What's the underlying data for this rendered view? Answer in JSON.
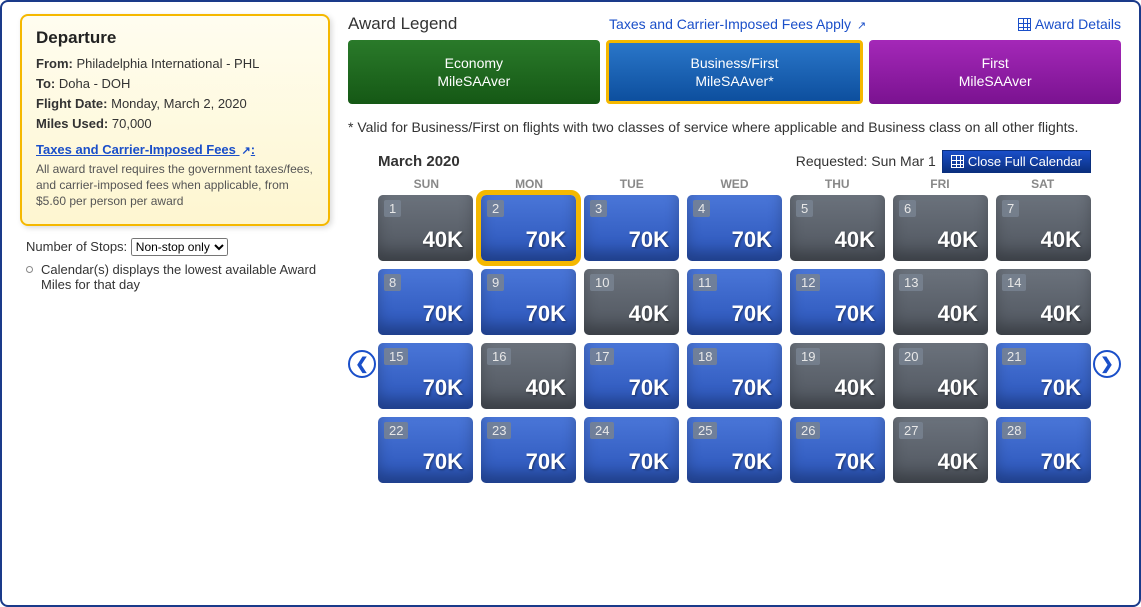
{
  "departure": {
    "title": "Departure",
    "from_label": "From:",
    "from_value": "Philadelphia International - PHL",
    "to_label": "To:",
    "to_value": "Doha - DOH",
    "date_label": "Flight Date:",
    "date_value": "Monday, March 2, 2020",
    "miles_label": "Miles Used:",
    "miles_value": "70,000",
    "fees_link": "Taxes and Carrier-Imposed Fees",
    "fees_note": "All award travel requires the government taxes/fees, and carrier-imposed fees when applicable, from $5.60 per person per award"
  },
  "stops": {
    "label": "Number of Stops:",
    "selected": "Non-stop only",
    "note": "Calendar(s) displays the lowest available Award Miles for that day"
  },
  "legend": {
    "title": "Award Legend",
    "fees_apply": "Taxes and Carrier-Imposed Fees Apply",
    "details": "Award Details"
  },
  "tabs": {
    "econ": {
      "l1": "Economy",
      "l2": "MileSAAver"
    },
    "biz": {
      "l1": "Business/First",
      "l2": "MileSAAver*"
    },
    "first": {
      "l1": "First",
      "l2": "MileSAAver"
    }
  },
  "footnote": "* Valid for Business/First on flights with two classes of service where applicable and Business class on all other flights.",
  "calendar": {
    "month": "March 2020",
    "requested": "Requested: Sun Mar 1",
    "close": "Close Full Calendar",
    "dow": [
      "SUN",
      "MON",
      "TUE",
      "WED",
      "THU",
      "FRI",
      "SAT"
    ],
    "days": [
      {
        "n": "1",
        "m": "40K",
        "c": "gray"
      },
      {
        "n": "2",
        "m": "70K",
        "c": "blue",
        "sel": true
      },
      {
        "n": "3",
        "m": "70K",
        "c": "blue"
      },
      {
        "n": "4",
        "m": "70K",
        "c": "blue"
      },
      {
        "n": "5",
        "m": "40K",
        "c": "gray"
      },
      {
        "n": "6",
        "m": "40K",
        "c": "gray"
      },
      {
        "n": "7",
        "m": "40K",
        "c": "gray"
      },
      {
        "n": "8",
        "m": "70K",
        "c": "blue"
      },
      {
        "n": "9",
        "m": "70K",
        "c": "blue"
      },
      {
        "n": "10",
        "m": "40K",
        "c": "gray"
      },
      {
        "n": "11",
        "m": "70K",
        "c": "blue"
      },
      {
        "n": "12",
        "m": "70K",
        "c": "blue"
      },
      {
        "n": "13",
        "m": "40K",
        "c": "gray"
      },
      {
        "n": "14",
        "m": "40K",
        "c": "gray"
      },
      {
        "n": "15",
        "m": "70K",
        "c": "blue"
      },
      {
        "n": "16",
        "m": "40K",
        "c": "gray"
      },
      {
        "n": "17",
        "m": "70K",
        "c": "blue"
      },
      {
        "n": "18",
        "m": "70K",
        "c": "blue"
      },
      {
        "n": "19",
        "m": "40K",
        "c": "gray"
      },
      {
        "n": "20",
        "m": "40K",
        "c": "gray"
      },
      {
        "n": "21",
        "m": "70K",
        "c": "blue"
      },
      {
        "n": "22",
        "m": "70K",
        "c": "blue"
      },
      {
        "n": "23",
        "m": "70K",
        "c": "blue"
      },
      {
        "n": "24",
        "m": "70K",
        "c": "blue"
      },
      {
        "n": "25",
        "m": "70K",
        "c": "blue"
      },
      {
        "n": "26",
        "m": "70K",
        "c": "blue"
      },
      {
        "n": "27",
        "m": "40K",
        "c": "gray"
      },
      {
        "n": "28",
        "m": "70K",
        "c": "blue"
      }
    ]
  }
}
